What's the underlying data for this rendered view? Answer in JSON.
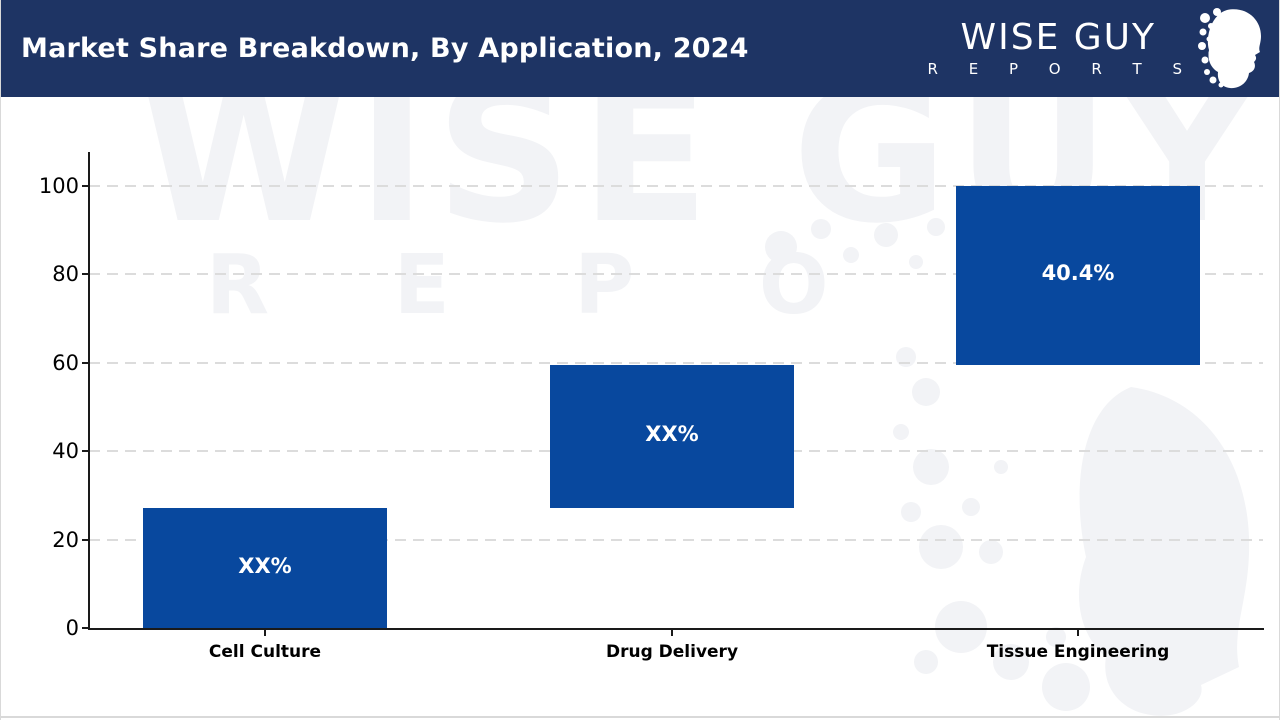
{
  "header": {
    "title": "Market Share Breakdown, By Application, 2024",
    "logo": {
      "line1": "WISE GUY",
      "line2": "R E P O R T S"
    }
  },
  "watermark": {
    "line1": "WISE GUY",
    "line2": "R E P O R T S"
  },
  "colors": {
    "header_background": "#1e3464",
    "bar_blue": "#08489e",
    "gridline": "#dcdcdc",
    "axis": "#1a1a1a",
    "bar_label_text": "#ffffff",
    "watermark": "#f2f3f6"
  },
  "chart_data": {
    "type": "bar",
    "subtype": "waterfall",
    "title": "Market Share Breakdown, By Application, 2024",
    "categories": [
      "Cell Culture",
      "Drug Delivery",
      "Tissue Engineering"
    ],
    "segments": [
      {
        "category": "Cell Culture",
        "start": 0,
        "end": 27.1,
        "label": "XX%"
      },
      {
        "category": "Drug Delivery",
        "start": 27.1,
        "end": 59.6,
        "label": "XX%"
      },
      {
        "category": "Tissue Engineering",
        "start": 59.6,
        "end": 100,
        "label": "40.4%"
      }
    ],
    "ylim": [
      0,
      100
    ],
    "yticks": [
      0,
      20,
      40,
      60,
      80,
      100
    ],
    "xlabel": "",
    "ylabel": "",
    "grid": "horizontal-dashed",
    "legend": "none"
  }
}
